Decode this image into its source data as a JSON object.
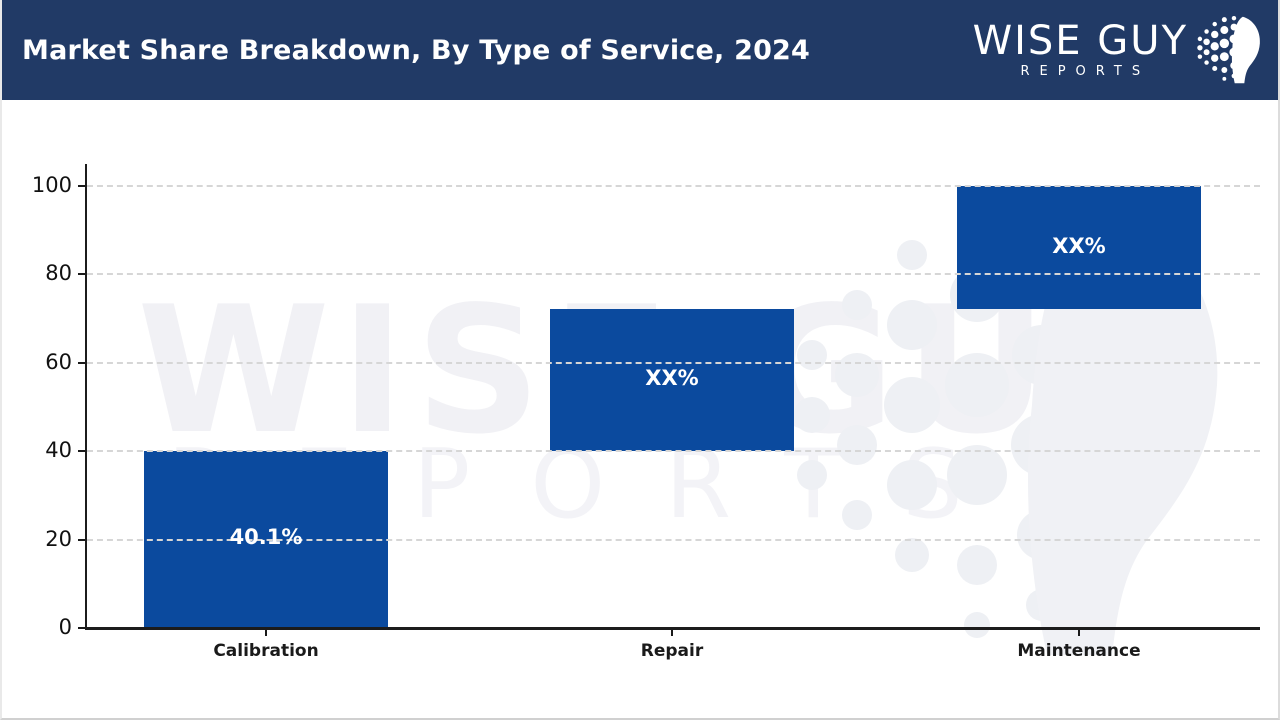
{
  "header": {
    "title": "Market Share Breakdown, By Type of Service, 2024",
    "logo": {
      "line1": "WISE GUY",
      "line2": "REPORTS"
    }
  },
  "watermark": {
    "line1": "WISE GUY",
    "line2": "REPORTS"
  },
  "colors": {
    "header_navy": "#213a66",
    "bar_blue": "#0b4a9e",
    "bar_label_white": "#ffffff",
    "grid_gray": "#d6d6d6",
    "axis_dark": "#1c1c1c",
    "watermark_gray": "#f1f1f5"
  },
  "chart_data": {
    "type": "bar",
    "subtype": "waterfall",
    "title": "Market Share Breakdown, By Type of Service, 2024",
    "categories": [
      "Calibration",
      "Repair",
      "Maintenance"
    ],
    "segments": [
      {
        "category": "Calibration",
        "start": 0,
        "end": 40.1,
        "label": "40.1%"
      },
      {
        "category": "Repair",
        "start": 40.1,
        "end": 72.1,
        "label": "XX%"
      },
      {
        "category": "Maintenance",
        "start": 72.1,
        "end": 100,
        "label": "XX%"
      }
    ],
    "xlabel": "",
    "ylabel": "",
    "ylim": [
      0,
      100
    ],
    "yticks": [
      0,
      20,
      40,
      60,
      80,
      100
    ],
    "grid": "horizontal-dashed",
    "grid_over_bars": true,
    "legend": "none",
    "bar_color": "#0b4a9e",
    "label_color": "#ffffff"
  }
}
